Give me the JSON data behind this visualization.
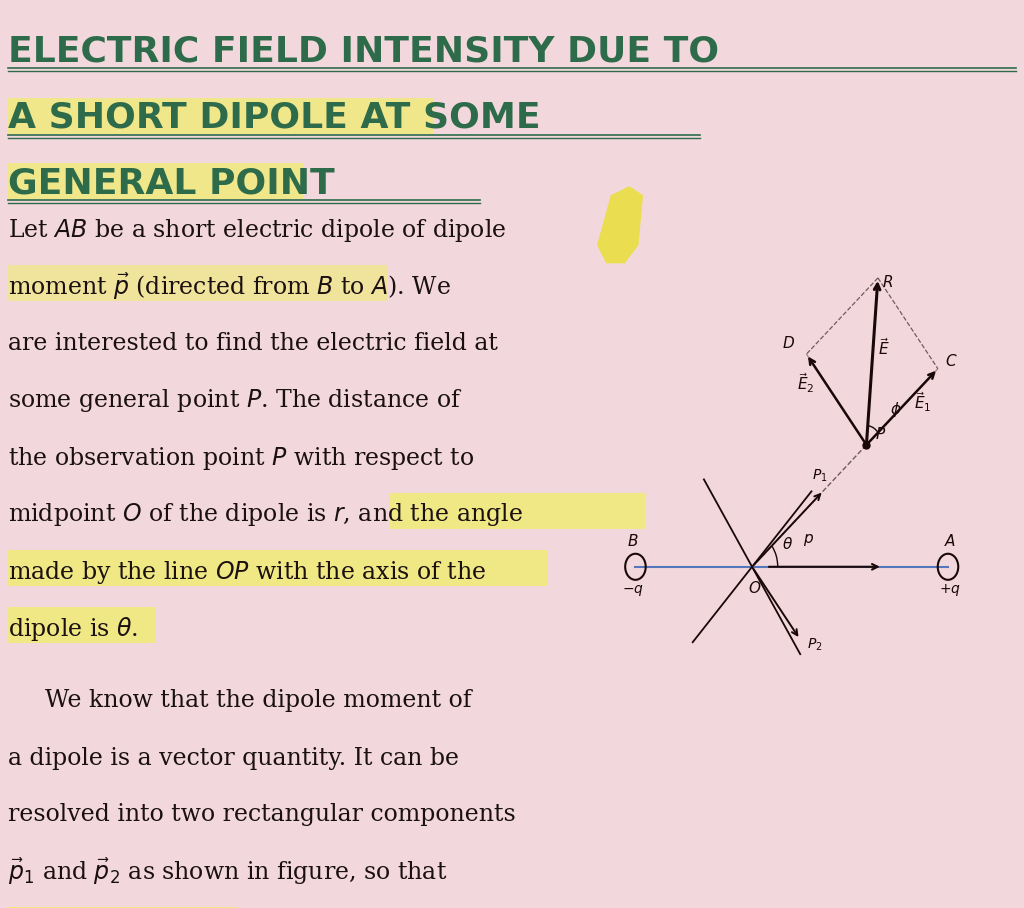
{
  "bg_color": "#f2d8dc",
  "title_color": "#2d6b4a",
  "title_line1": "ELECTRIC FIELD INTENSITY DUE TO",
  "title_line2": "A SHORT DIPOLE AT SOME",
  "title_line3": "GENERAL POINT",
  "body_text_color": "#1a1010",
  "highlight_color": "#f0f060",
  "diagram_color": "#1a0808",
  "fig_width": 10.24,
  "fig_height": 9.08,
  "title_fontsize": 26,
  "body_fontsize": 17
}
